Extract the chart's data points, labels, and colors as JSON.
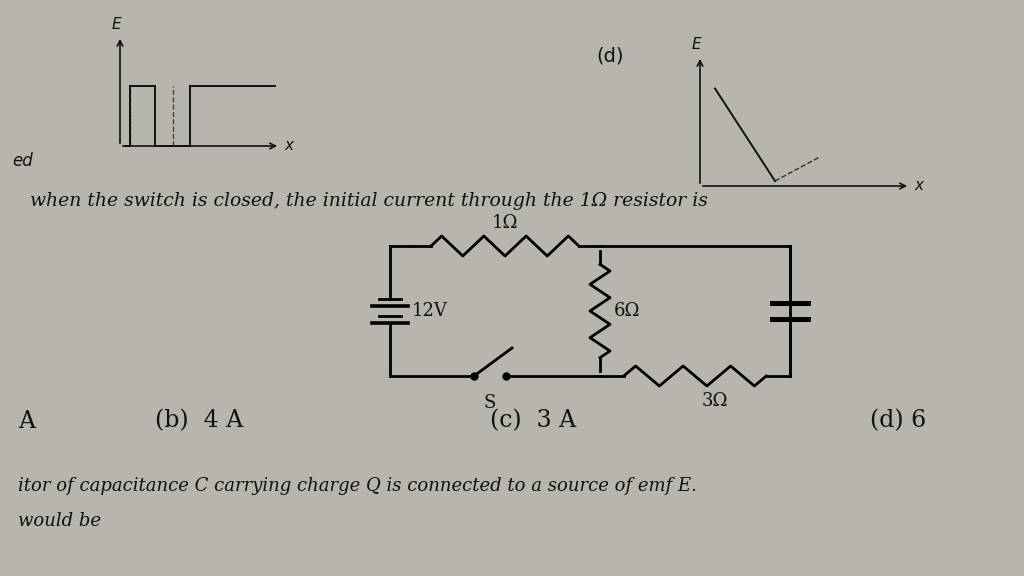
{
  "background_color": "#b8b4ae",
  "page_color": "#c9c4bc",
  "text_color": "#111111",
  "dark_text": "#1a1a1a",
  "circuit": {
    "battery_label": "12V",
    "r1_label": "1Ω",
    "r2_label": "6Ω",
    "r3_label": "3Ω",
    "switch_label": "S"
  },
  "question_text": "when the switch is closed, the initial current through the 1Ω resistor is",
  "answer_a": "A",
  "answer_b": "(b)  4 A",
  "answer_c": "(c)  3 A",
  "answer_d": "(d) 6",
  "bottom_line1": "itor of capacitance C carrying charge Q is connected to a source of emf E.",
  "bottom_line2": "would be",
  "top_label_d": "(d)"
}
